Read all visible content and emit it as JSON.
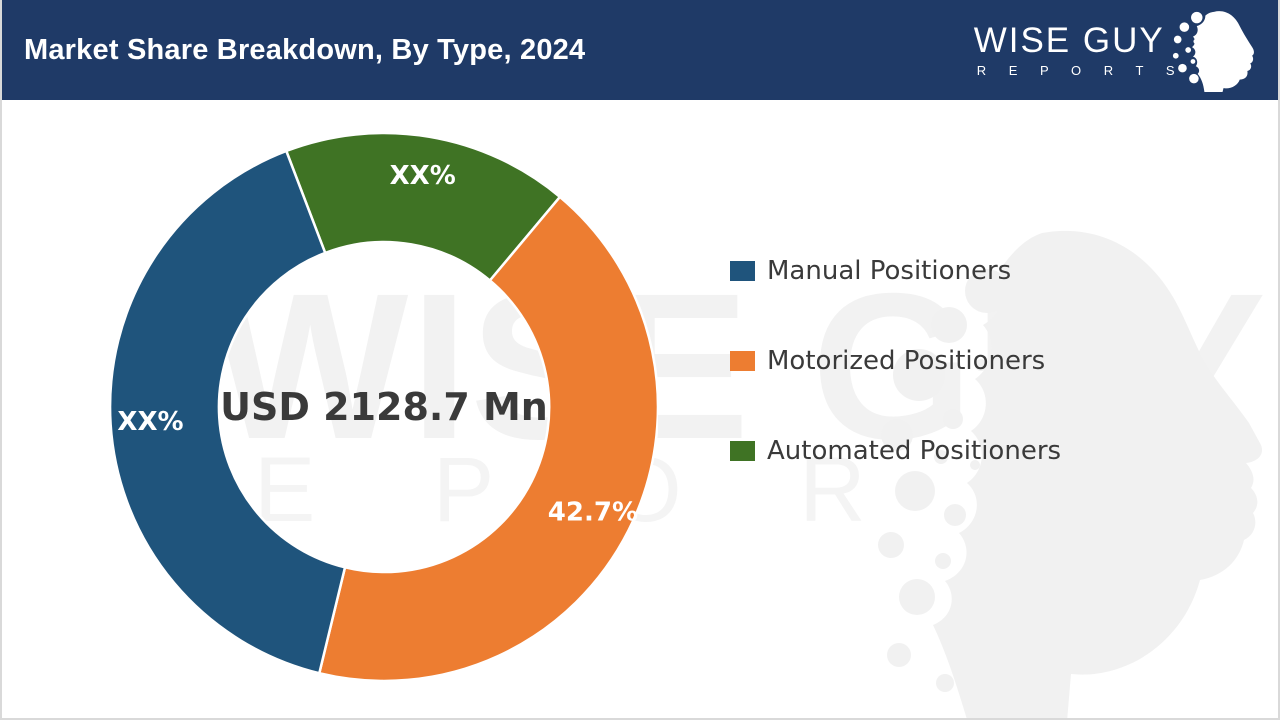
{
  "header": {
    "title": "Market Share Breakdown, By Type, 2024",
    "bg_color": "#1F3A67",
    "logo": {
      "line1": "WISE GUY",
      "line2": "R E P O R T S"
    }
  },
  "watermark": {
    "line1": "WISE GUY",
    "line2": "E P O R T"
  },
  "chart_data": {
    "type": "donut",
    "title": "Market Share Breakdown, By Type, 2024",
    "center_label": "USD 2128.7 Mn",
    "start_angle_deg": -20.9,
    "inner_radius_ratio": 0.602,
    "label_radius_ratio": 0.854,
    "stroke_color": "#ffffff",
    "segments": [
      {
        "name": "Automated Positioners",
        "value_pct": 16.9,
        "label": "XX%",
        "color": "#3F7324"
      },
      {
        "name": "Motorized Positioners",
        "value_pct": 42.7,
        "label": "42.7%",
        "color": "#ED7D31"
      },
      {
        "name": "Manual Positioners",
        "value_pct": 40.4,
        "label": "XX%",
        "color": "#1F547C"
      }
    ],
    "legend_position": "right"
  },
  "legend": {
    "items": [
      {
        "label": "Manual Positioners",
        "color": "#1F547C"
      },
      {
        "label": "Motorized Positioners",
        "color": "#ED7D31"
      },
      {
        "label": "Automated Positioners",
        "color": "#3F7324"
      }
    ]
  }
}
